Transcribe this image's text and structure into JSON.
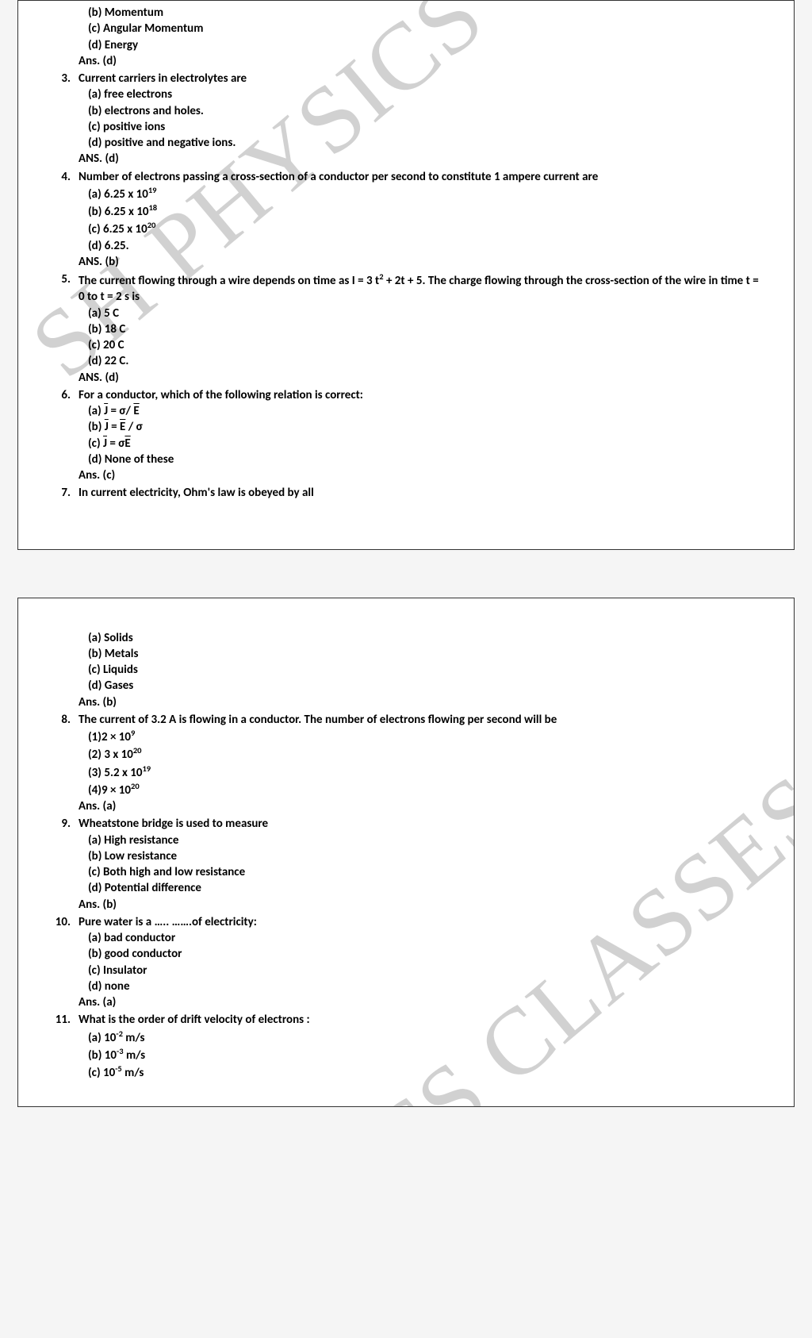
{
  "page1": {
    "q2": {
      "opts": [
        "(b) Momentum",
        "(c) Angular Momentum",
        "(d) Energy"
      ],
      "ans": "Ans. (d)"
    },
    "q3": {
      "num": "3.",
      "text": "Current carriers in electrolytes are",
      "opts": [
        "(a) free electrons",
        "(b) electrons and holes.",
        "(c) positive ions",
        "(d) positive and negative ions."
      ],
      "ans": "ANS.   (d)"
    },
    "q4": {
      "num": "4.",
      "text": "Number of electrons passing a cross-section of a conductor per second to constitute 1 ampere current are",
      "opts_html": [
        "(a) 6.25 x 10<sup>19</sup>",
        "(b) 6.25 x 10<sup>18</sup>",
        "(c) 6.25 x 10<sup>20</sup>",
        "(d) 6.25."
      ],
      "ans": "ANS. (b)"
    },
    "q5": {
      "num": "5.",
      "text_html": "The current flowing through a wire depends on time as I = 3 t<sup>2</sup> + 2t + 5. The charge flowing through the cross-section of the wire in time t = 0 to t = 2 s is",
      "opts": [
        "(a) 5 C",
        "(b) 18 C",
        "(c) 20 C",
        "(d) 22 C."
      ],
      "ans": "ANS. (d)"
    },
    "q6": {
      "num": "6.",
      "text": "For a conductor, which of the following relation is correct:",
      "opts_html": [
        "(a) <span class=\"vec\">J</span> = σ/ <span class=\"vec\">E</span>",
        "(b) <span class=\"vec\">J</span> = <span class=\"vec\">E</span> / σ",
        "(c) <span class=\"vec\">J</span> = σ<span class=\"vec\">E</span>",
        "(d) None of these"
      ],
      "ans": "Ans. (c)"
    },
    "q7": {
      "num": "7.",
      "text": "In current electricity, Ohm's law is obeyed by all"
    },
    "watermark": "SH PHYSICS C"
  },
  "page2": {
    "q7": {
      "opts": [
        "(a) Solids",
        "(b) Metals",
        "(c) Liquids",
        "(d) Gases"
      ],
      "ans": "Ans. (b)"
    },
    "q8": {
      "num": "8.",
      "text": "The current of 3.2 A is flowing in a conductor. The number of electrons flowing per second will be",
      "opts_html": [
        "(1)2 × 10<sup>9</sup>",
        "(2) 3 x 10<sup>20</sup>",
        "(3) 5.2 x 10<sup>19</sup>",
        "(4)9 × 10<sup>20</sup>"
      ],
      "ans": "Ans. (a)"
    },
    "q9": {
      "num": "9.",
      "text": "Wheatstone bridge is used to measure",
      "opts": [
        "(a) High resistance",
        "(b) Low resistance",
        "(c) Both high and low resistance",
        "(d) Potential difference"
      ],
      "ans": "Ans. (b)"
    },
    "q10": {
      "num": "10.",
      "text": "Pure water is a ….. …….of electricity:",
      "opts": [
        "(a) bad conductor",
        "(b) good conductor",
        "(c) Insulator",
        "(d) none"
      ],
      "ans": "Ans. (a)"
    },
    "q11": {
      "num": "11.",
      "text": "What is the order of drift velocity of electrons :",
      "opts_html": [
        "(a) 10<sup>-2</sup> m/s",
        "(b) 10<sup>-3</sup> m/s",
        "(c) 10<sup>-5</sup> m/s"
      ]
    },
    "watermark": "SICS CLASSES"
  }
}
